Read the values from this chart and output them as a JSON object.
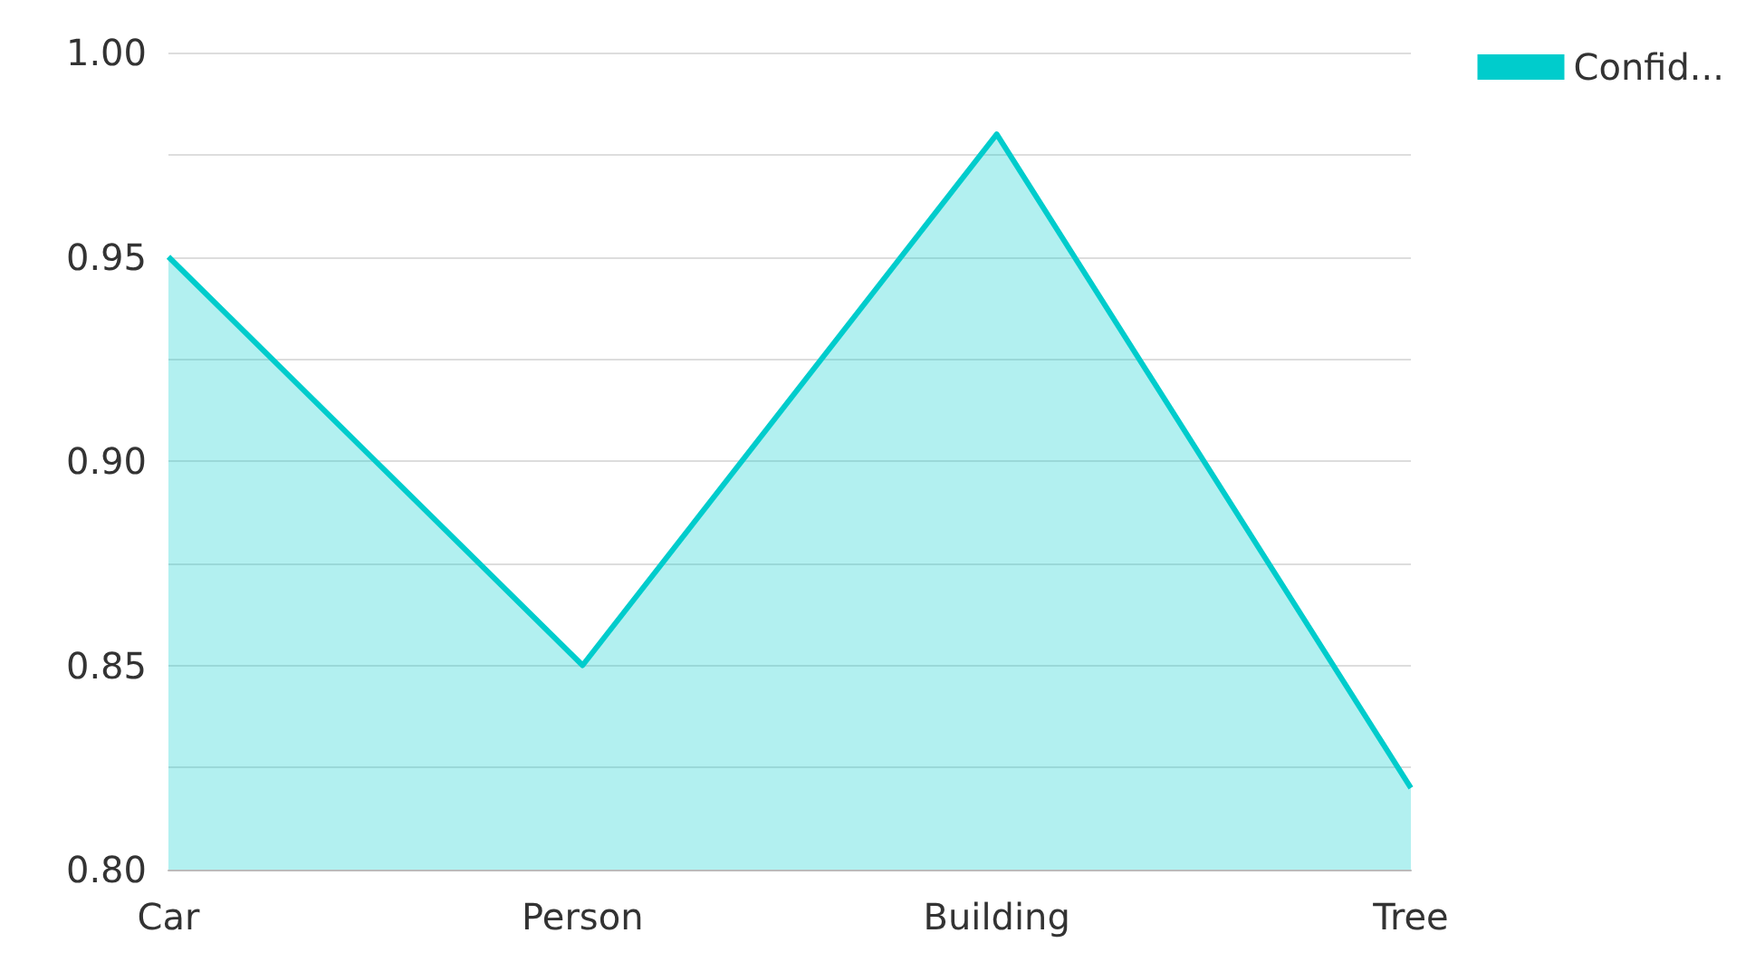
{
  "chart_data": {
    "type": "area",
    "categories": [
      "Car",
      "Person",
      "Building",
      "Tree"
    ],
    "series": [
      {
        "name": "Confid...",
        "color": "#00cccc",
        "values": [
          0.95,
          0.85,
          0.98,
          0.82
        ]
      }
    ],
    "ylim": [
      0.8,
      1.0
    ],
    "yticks": [
      {
        "value": 0.8,
        "label": "0.80"
      },
      {
        "value": 0.825,
        "label": null
      },
      0.85,
      {
        "value": 0.875,
        "label": null
      },
      {
        "value": 0.9,
        "label": "0.90"
      },
      {
        "value": 0.925,
        "label": null
      },
      0.95,
      {
        "value": 0.975,
        "label": null
      },
      {
        "value": 1.0,
        "label": "1.00"
      }
    ],
    "grid": "y",
    "legend": "top right",
    "marker": "none"
  }
}
